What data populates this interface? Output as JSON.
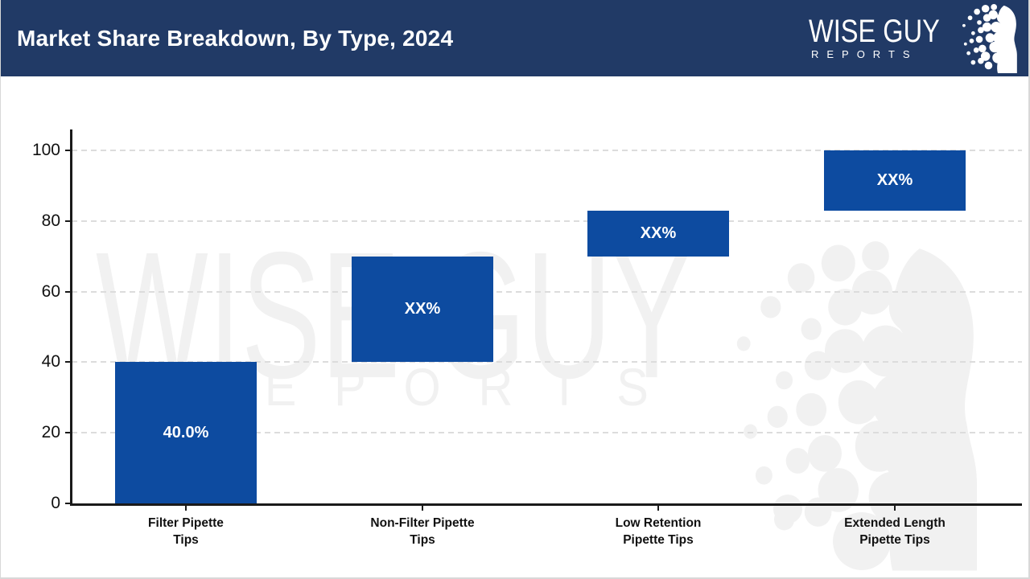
{
  "page": {
    "background": "#ffffff",
    "border_color": "#d8d8d8"
  },
  "header": {
    "title": "Market Share Breakdown, By Type, 2024",
    "background": "#213a66",
    "text_color": "#ffffff",
    "logo": {
      "wordmark": "WISE GUY",
      "subtext": "REPORTS"
    }
  },
  "watermark": {
    "wordmark": "WISE GUY",
    "subtext": "REPORTS"
  },
  "chart_data": {
    "type": "bar",
    "subtype": "waterfall",
    "title": "Market Share Breakdown, By Type, 2024",
    "categories": [
      "Filter Pipette Tips",
      "Non-Filter Pipette Tips",
      "Low Retention Pipette Tips",
      "Extended Length Pipette Tips"
    ],
    "category_label_lines": [
      [
        "Filter Pipette",
        "Tips"
      ],
      [
        "Non-Filter Pipette",
        "Tips"
      ],
      [
        "Low Retention",
        "Pipette Tips"
      ],
      [
        "Extended Length",
        "Pipette Tips"
      ]
    ],
    "segments": [
      {
        "category": "Filter Pipette Tips",
        "start": 0,
        "end": 40,
        "label": "40.0%"
      },
      {
        "category": "Non-Filter Pipette Tips",
        "start": 40,
        "end": 70,
        "label": "XX%"
      },
      {
        "category": "Low Retention Pipette Tips",
        "start": 70,
        "end": 83,
        "label": "XX%"
      },
      {
        "category": "Extended Length Pipette Tips",
        "start": 83,
        "end": 100,
        "label": "XX%"
      }
    ],
    "y_ticks": [
      0,
      20,
      40,
      60,
      80,
      100
    ],
    "ylim": [
      0,
      105
    ],
    "xlabel": "",
    "ylabel": "",
    "grid": "horizontal-dashed",
    "legend": "none",
    "bar_color": "#0d4ba0",
    "bar_label_color": "#ffffff",
    "axis_color": "#1a1a1a",
    "grid_color": "#dcdcdc",
    "tick_label_color": "#111111"
  }
}
